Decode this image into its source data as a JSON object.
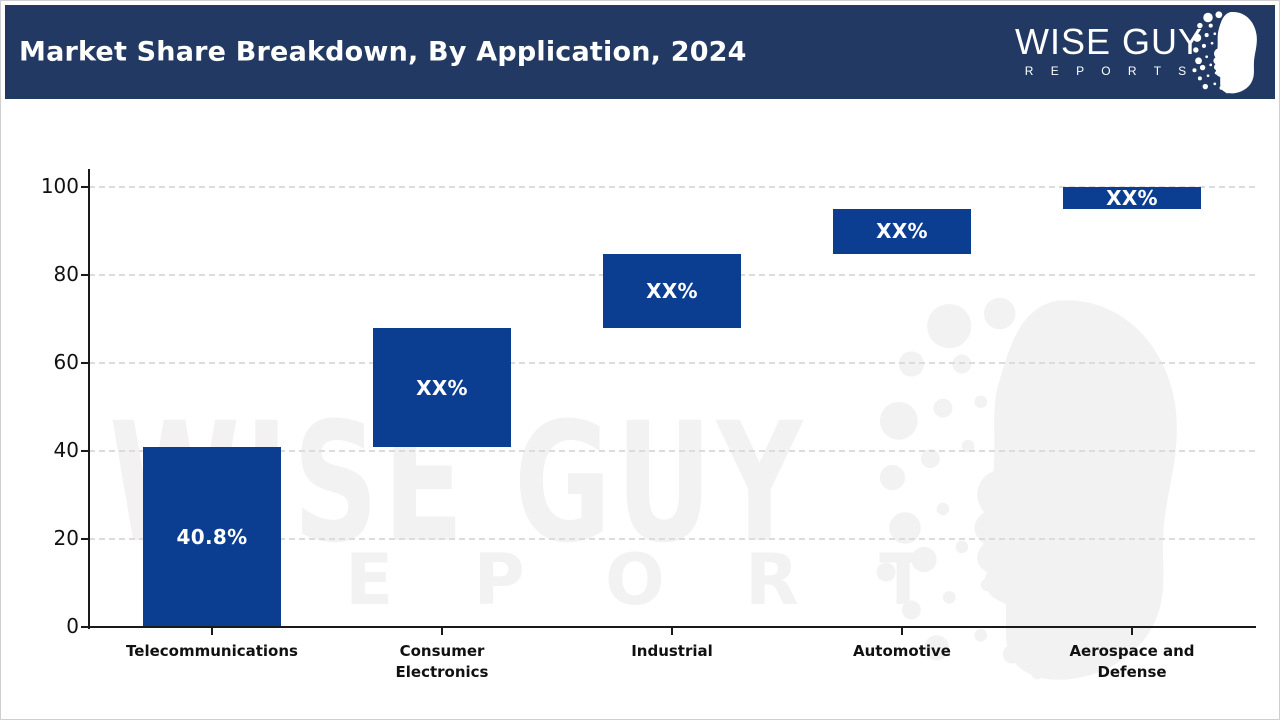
{
  "header": {
    "title": "Market Share Breakdown, By Application, 2024",
    "bg_color": "#223a63",
    "logo": {
      "line1": "WISE GUY",
      "line2": "R E P O R T S",
      "face_icon": "dotted-face-profile"
    }
  },
  "watermark": {
    "line1": "WISE GUY",
    "line2": "R E P O R T S",
    "face_icon": "dotted-face-profile",
    "color": "#f2f2f2"
  },
  "chart_data": {
    "type": "bar",
    "subtype": "waterfall",
    "title": "Market Share Breakdown, By Application, 2024",
    "xlabel": "",
    "ylabel": "",
    "categories": [
      "Telecommunications",
      "Consumer Electronics",
      "Industrial",
      "Automotive",
      "Aerospace and Defense"
    ],
    "category_lines": [
      [
        "Telecommunications"
      ],
      [
        "Consumer",
        "Electronics"
      ],
      [
        "Industrial"
      ],
      [
        "Automotive"
      ],
      [
        "Aerospace and",
        "Defense"
      ]
    ],
    "segments": [
      {
        "category": "Telecommunications",
        "start": 0,
        "end": 40.8,
        "label": "40.8%"
      },
      {
        "category": "Consumer Electronics",
        "start": 40.8,
        "end": 68.0,
        "label": "XX%"
      },
      {
        "category": "Industrial",
        "start": 68.0,
        "end": 84.8,
        "label": "XX%"
      },
      {
        "category": "Automotive",
        "start": 84.8,
        "end": 95.0,
        "label": "XX%"
      },
      {
        "category": "Aerospace and Defense",
        "start": 95.0,
        "end": 100.0,
        "label": "XX%"
      }
    ],
    "yticks": [
      0,
      20,
      40,
      60,
      80,
      100
    ],
    "ylim": [
      0,
      104
    ],
    "grid": "horizontal-dashed",
    "legend": "none",
    "bar_color": "#0b3d91",
    "bar_label_color": "#ffffff",
    "axis_color": "#1a1a1a"
  }
}
